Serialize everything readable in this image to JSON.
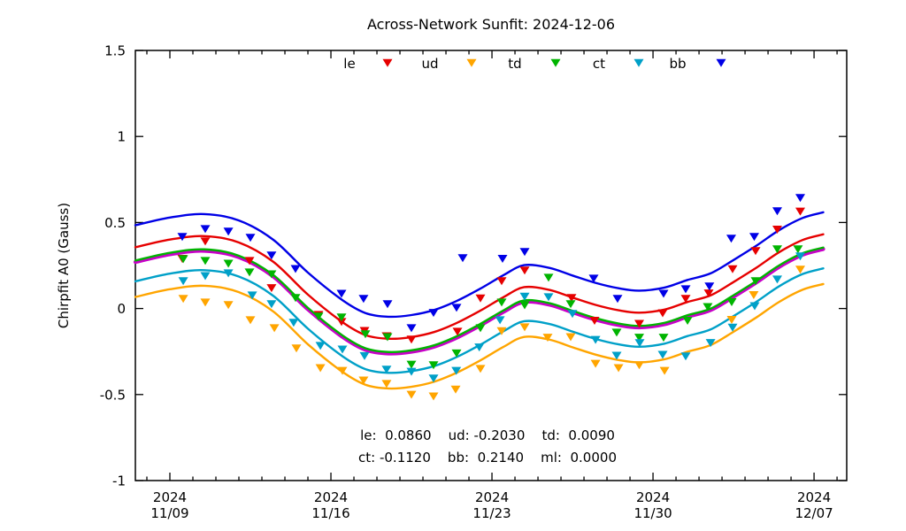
{
  "chart_data": {
    "type": "line+scatter",
    "title": "Across-Network Sunfit: 2024-12-06",
    "ylabel": "Chirpfit A0 (Gauss)",
    "ylim": [
      -1,
      1.5
    ],
    "yticks": [
      {
        "v": 1.5,
        "label": "1.5"
      },
      {
        "v": 1.0,
        "label": "1"
      },
      {
        "v": 0.5,
        "label": "0.5"
      },
      {
        "v": 0.0,
        "label": "0"
      },
      {
        "v": -0.5,
        "label": "-0.5"
      },
      {
        "v": -1.0,
        "label": "-1"
      }
    ],
    "xlim_days": [
      -1.5,
      29.42
    ],
    "x_major_ticks": [
      {
        "day": 0,
        "year": "2024",
        "date": "11/09"
      },
      {
        "day": 7,
        "year": "2024",
        "date": "11/16"
      },
      {
        "day": 14,
        "year": "2024",
        "date": "11/23"
      },
      {
        "day": 21,
        "year": "2024",
        "date": "11/30"
      },
      {
        "day": 28,
        "year": "2024",
        "date": "12/07"
      }
    ],
    "x_minor_tick_every_days": 1,
    "grid": false,
    "legend_position": "top-inside",
    "legend_marker": "triangle-down",
    "base_curve": [
      [
        -1.5,
        0.27
      ],
      [
        0,
        0.315
      ],
      [
        1.5,
        0.335
      ],
      [
        3,
        0.298
      ],
      [
        4.5,
        0.185
      ],
      [
        6,
        -0.005
      ],
      [
        7.5,
        -0.165
      ],
      [
        8.5,
        -0.24
      ],
      [
        9.5,
        -0.262
      ],
      [
        10.5,
        -0.252
      ],
      [
        11.5,
        -0.222
      ],
      [
        12.5,
        -0.168
      ],
      [
        13.5,
        -0.098
      ],
      [
        14.5,
        -0.02
      ],
      [
        15.4,
        0.038
      ],
      [
        16.5,
        0.022
      ],
      [
        17.5,
        -0.022
      ],
      [
        18.5,
        -0.065
      ],
      [
        19.5,
        -0.096
      ],
      [
        20.4,
        -0.11
      ],
      [
        21.5,
        -0.092
      ],
      [
        22.5,
        -0.048
      ],
      [
        23.5,
        -0.01
      ],
      [
        24.5,
        0.068
      ],
      [
        25.5,
        0.152
      ],
      [
        26.5,
        0.243
      ],
      [
        27.5,
        0.312
      ],
      [
        28.4,
        0.345
      ]
    ],
    "mean_line": {
      "id": "ml",
      "color": "#c800c8",
      "fit_offset": 0.0
    },
    "series": [
      {
        "id": "le",
        "label": "le",
        "color": "#e60000",
        "fit_offset": 0.086,
        "points": [
          [
            0.54,
            0.29
          ],
          [
            1.54,
            0.391
          ],
          [
            3.46,
            0.278
          ],
          [
            4.42,
            0.12
          ],
          [
            6.46,
            -0.036
          ],
          [
            7.46,
            -0.077
          ],
          [
            8.46,
            -0.129
          ],
          [
            9.42,
            -0.16
          ],
          [
            10.5,
            -0.179
          ],
          [
            12.5,
            -0.134
          ],
          [
            13.5,
            0.06
          ],
          [
            14.42,
            0.16
          ],
          [
            15.42,
            0.222
          ],
          [
            17.46,
            0.062
          ],
          [
            18.46,
            -0.07
          ],
          [
            20.4,
            -0.088
          ],
          [
            21.42,
            -0.026
          ],
          [
            22.42,
            0.057
          ],
          [
            23.42,
            0.089
          ],
          [
            24.46,
            0.23
          ],
          [
            25.46,
            0.335
          ],
          [
            26.4,
            0.46
          ],
          [
            27.4,
            0.565
          ]
        ]
      },
      {
        "id": "ud",
        "label": "ud",
        "color": "#ffa500",
        "fit_offset": -0.203,
        "points": [
          [
            0.58,
            0.057
          ],
          [
            1.54,
            0.036
          ],
          [
            2.54,
            0.021
          ],
          [
            3.5,
            -0.067
          ],
          [
            4.54,
            -0.113
          ],
          [
            5.5,
            -0.231
          ],
          [
            6.54,
            -0.345
          ],
          [
            7.5,
            -0.361
          ],
          [
            8.42,
            -0.417
          ],
          [
            9.42,
            -0.437
          ],
          [
            10.5,
            -0.5
          ],
          [
            11.46,
            -0.51
          ],
          [
            12.42,
            -0.47
          ],
          [
            13.5,
            -0.35
          ],
          [
            14.42,
            -0.13
          ],
          [
            15.42,
            -0.108
          ],
          [
            16.42,
            -0.168
          ],
          [
            17.42,
            -0.165
          ],
          [
            18.5,
            -0.32
          ],
          [
            19.5,
            -0.345
          ],
          [
            20.4,
            -0.328
          ],
          [
            21.5,
            -0.361
          ],
          [
            24.42,
            -0.065
          ],
          [
            25.38,
            0.079
          ],
          [
            27.4,
            0.227
          ]
        ]
      },
      {
        "id": "td",
        "label": "td",
        "color": "#00b400",
        "fit_offset": 0.009,
        "points": [
          [
            0.58,
            0.288
          ],
          [
            1.54,
            0.278
          ],
          [
            2.54,
            0.262
          ],
          [
            3.46,
            0.211
          ],
          [
            4.42,
            0.2
          ],
          [
            5.46,
            0.062
          ],
          [
            6.46,
            -0.046
          ],
          [
            7.46,
            -0.051
          ],
          [
            8.5,
            -0.148
          ],
          [
            9.46,
            -0.165
          ],
          [
            10.5,
            -0.325
          ],
          [
            11.46,
            -0.328
          ],
          [
            12.46,
            -0.26
          ],
          [
            13.5,
            -0.113
          ],
          [
            14.42,
            0.036
          ],
          [
            15.42,
            0.02
          ],
          [
            16.46,
            0.18
          ],
          [
            17.42,
            0.027
          ],
          [
            19.42,
            -0.139
          ],
          [
            20.4,
            -0.168
          ],
          [
            21.46,
            -0.168
          ],
          [
            22.5,
            -0.07
          ],
          [
            23.38,
            0.01
          ],
          [
            24.42,
            0.038
          ],
          [
            25.46,
            0.16
          ],
          [
            26.4,
            0.345
          ],
          [
            27.3,
            0.345
          ]
        ]
      },
      {
        "id": "ct",
        "label": "ct",
        "color": "#00a0c8",
        "fit_offset": -0.112,
        "points": [
          [
            0.58,
            0.16
          ],
          [
            1.54,
            0.19
          ],
          [
            2.54,
            0.206
          ],
          [
            3.58,
            0.077
          ],
          [
            4.42,
            0.026
          ],
          [
            5.38,
            -0.082
          ],
          [
            6.54,
            -0.216
          ],
          [
            7.5,
            -0.237
          ],
          [
            8.46,
            -0.275
          ],
          [
            9.42,
            -0.354
          ],
          [
            10.5,
            -0.366
          ],
          [
            11.46,
            -0.406
          ],
          [
            12.45,
            -0.361
          ],
          [
            13.45,
            -0.225
          ],
          [
            14.35,
            -0.067
          ],
          [
            15.42,
            0.07
          ],
          [
            16.46,
            0.067
          ],
          [
            17.5,
            -0.03
          ],
          [
            18.5,
            -0.181
          ],
          [
            19.42,
            -0.273
          ],
          [
            20.42,
            -0.2
          ],
          [
            21.42,
            -0.268
          ],
          [
            22.42,
            -0.277
          ],
          [
            23.5,
            -0.199
          ],
          [
            24.46,
            -0.11
          ],
          [
            25.42,
            0.015
          ],
          [
            26.4,
            0.17
          ],
          [
            27.4,
            0.304
          ]
        ]
      },
      {
        "id": "bb",
        "label": "bb",
        "color": "#0000e6",
        "fit_offset": 0.214,
        "points": [
          [
            0.54,
            0.417
          ],
          [
            1.54,
            0.463
          ],
          [
            2.54,
            0.448
          ],
          [
            3.5,
            0.412
          ],
          [
            4.42,
            0.309
          ],
          [
            5.46,
            0.231
          ],
          [
            7.46,
            0.087
          ],
          [
            8.42,
            0.057
          ],
          [
            9.46,
            0.026
          ],
          [
            10.5,
            -0.113
          ],
          [
            11.46,
            -0.024
          ],
          [
            12.46,
            0.005
          ],
          [
            12.73,
            0.294
          ],
          [
            14.46,
            0.29
          ],
          [
            15.42,
            0.33
          ],
          [
            18.42,
            0.175
          ],
          [
            19.46,
            0.057
          ],
          [
            21.46,
            0.087
          ],
          [
            22.42,
            0.113
          ],
          [
            23.45,
            0.129
          ],
          [
            24.4,
            0.407
          ],
          [
            25.4,
            0.417
          ],
          [
            26.4,
            0.567
          ],
          [
            27.4,
            0.644
          ]
        ]
      }
    ],
    "stats": {
      "line1": [
        "le:  0.0860",
        "ud: -0.2030",
        "td:  0.0090"
      ],
      "line2": [
        "ct: -0.1120",
        "bb:  0.2140",
        "ml:  0.0000"
      ]
    }
  }
}
